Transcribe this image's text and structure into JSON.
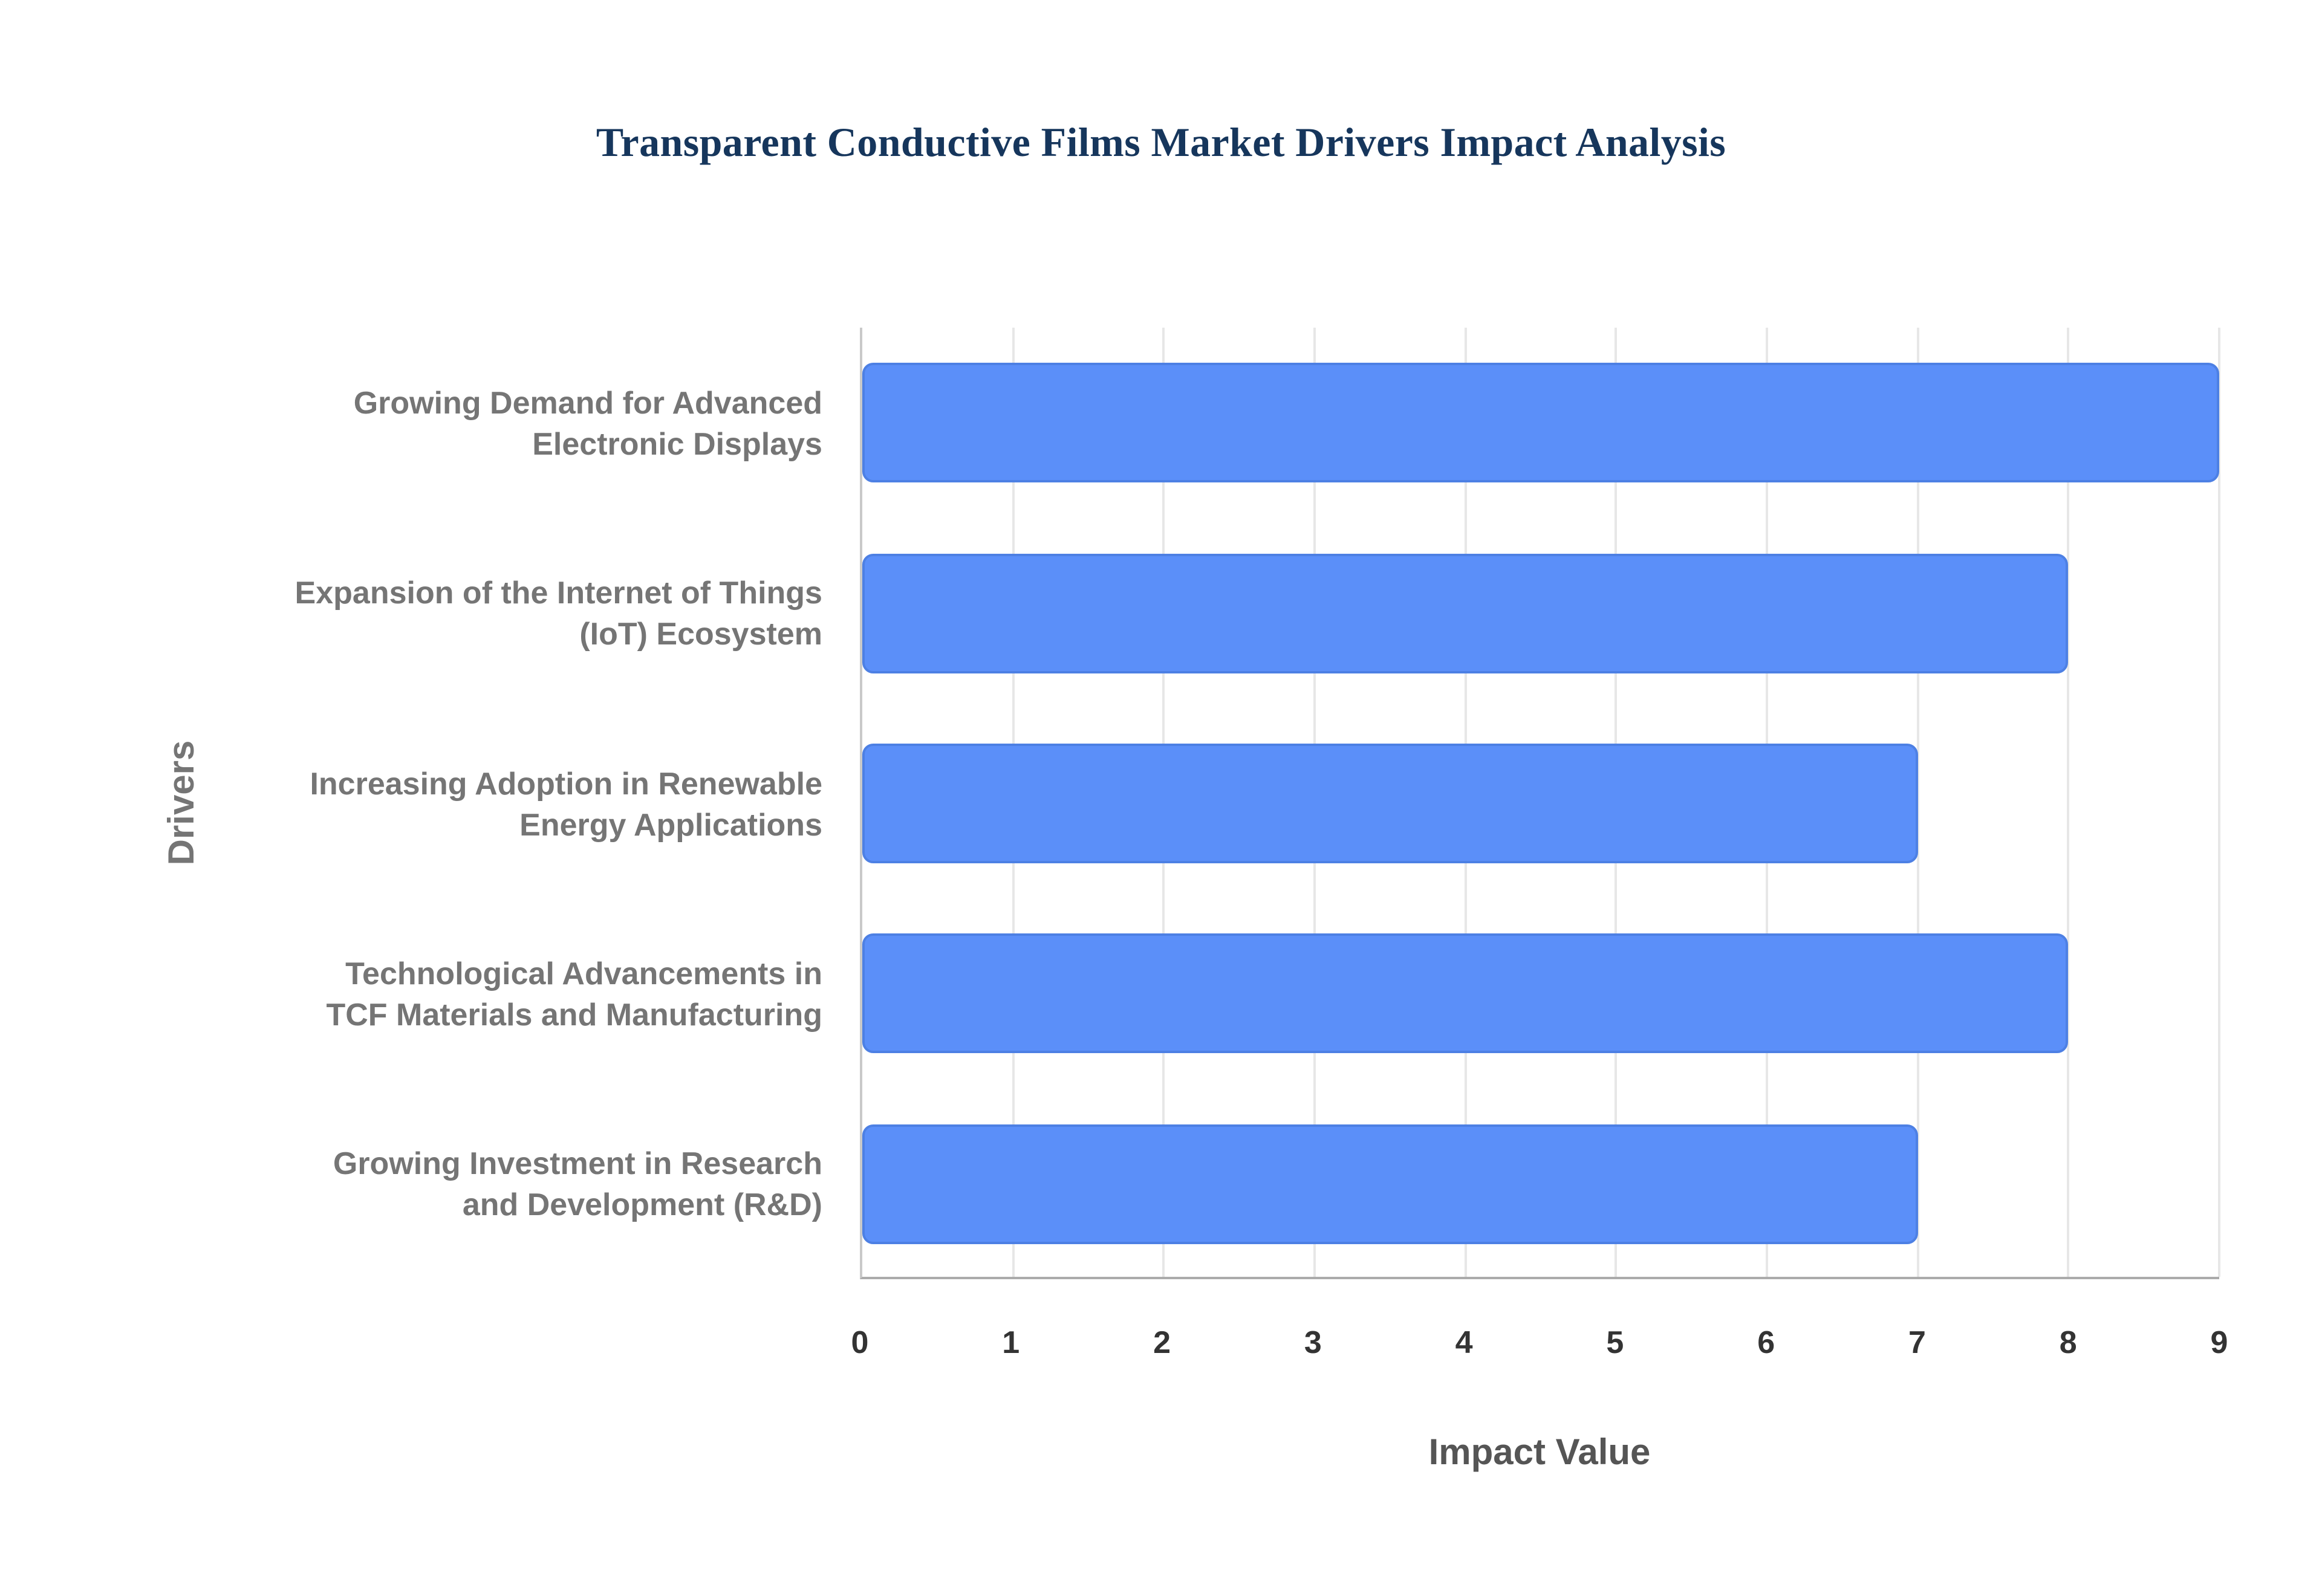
{
  "chart_data": {
    "type": "bar",
    "orientation": "horizontal",
    "title": "Transparent Conductive Films Market Drivers Impact Analysis",
    "categories": [
      "Growing Demand for Advanced Electronic Displays",
      "Expansion of the Internet of Things (IoT) Ecosystem",
      "Increasing Adoption in Renewable Energy Applications",
      "Technological Advancements in TCF Materials and Manufacturing",
      "Growing Investment in Research and Development (R&D)"
    ],
    "values": [
      9,
      8,
      7,
      8,
      7
    ],
    "xlabel": "Impact Value",
    "ylabel": "Drivers",
    "xlim": [
      0,
      9
    ],
    "xticks": [
      0,
      1,
      2,
      3,
      4,
      5,
      6,
      7,
      8,
      9
    ],
    "grid": "vertical",
    "legend": "none",
    "colors": {
      "bar_fill": "#5b8ff9",
      "bar_border": "#4d80e4",
      "title": "#16365c",
      "category_label": "#757575",
      "tick_label": "#333333",
      "axis_label": "#555555",
      "gridline": "#e7e7e7",
      "background": "#ffffff"
    }
  }
}
